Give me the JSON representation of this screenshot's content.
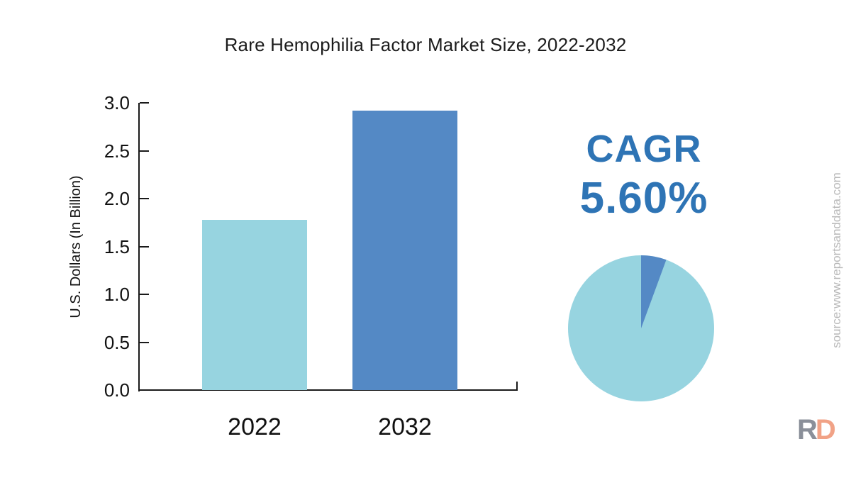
{
  "title": "Rare Hemophilia Factor Market Size, 2022-2032",
  "chart_data": {
    "type": "bar",
    "title": "Rare Hemophilia Factor Market Size, 2022-2032",
    "categories": [
      "2022",
      "2032"
    ],
    "values": [
      1.78,
      2.92
    ],
    "xlabel": "",
    "ylabel": "U.S. Dollars (In Billion)",
    "ylim": [
      0,
      3
    ],
    "yticks": [
      "0.0",
      "0.5",
      "1.0",
      "1.5",
      "2.0",
      "2.5",
      "3.0"
    ],
    "bar_colors": [
      "#97d4e0",
      "#5489c5"
    ],
    "grid": false,
    "legend": false
  },
  "cagr": {
    "label": "CAGR",
    "value": "5.60%",
    "percent": 5.6,
    "color": "#2e74b5"
  },
  "pie": {
    "slice_percent": 5.6,
    "main_color": "#97d4e0",
    "slice_color": "#5489c5"
  },
  "source": {
    "text": "source:www.reportsanddata.com",
    "color": "#b8b8b8"
  },
  "logo": {
    "letters": [
      "R",
      "D"
    ],
    "colors": [
      "#8a8f99",
      "#f1a286"
    ]
  }
}
